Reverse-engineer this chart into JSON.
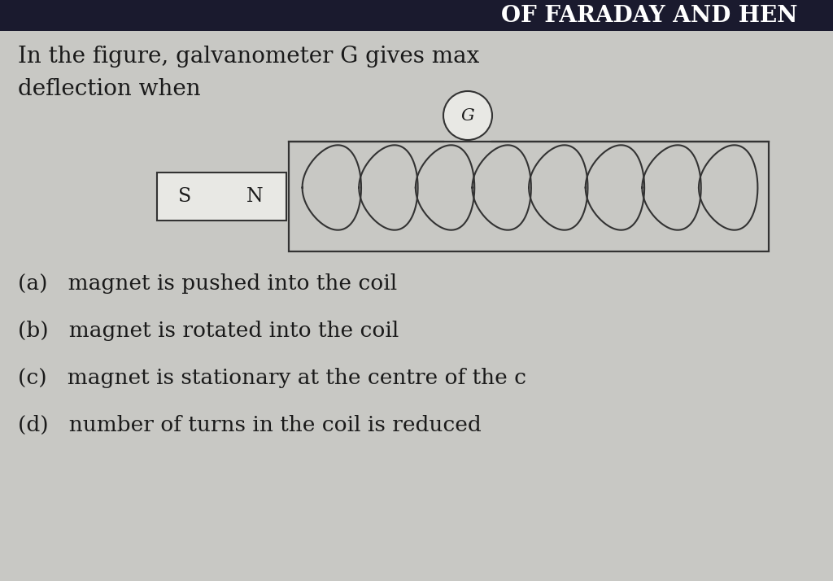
{
  "bg_color": "#c8c8c4",
  "page_color": "#e8e8e4",
  "header_color": "#1a1a2e",
  "header_text": "OF FARADAY AND HEN",
  "question_line1": "In the figure, galvanometer G gives max",
  "question_line2": "deflection when",
  "options": [
    "(a)   magnet is pushed into the coil",
    "(b)   magnet is rotated into the coil",
    "(c)   magnet is stationary at the centre of the c",
    "(d)   number of turns in the coil is reduced"
  ],
  "magnet_label_S": "S",
  "magnet_label_N": "N",
  "galvanometer_label": "G",
  "text_color": "#1a1a1a",
  "line_color": "#333333",
  "question_fontsize": 20,
  "option_fontsize": 19,
  "header_fontsize": 20
}
